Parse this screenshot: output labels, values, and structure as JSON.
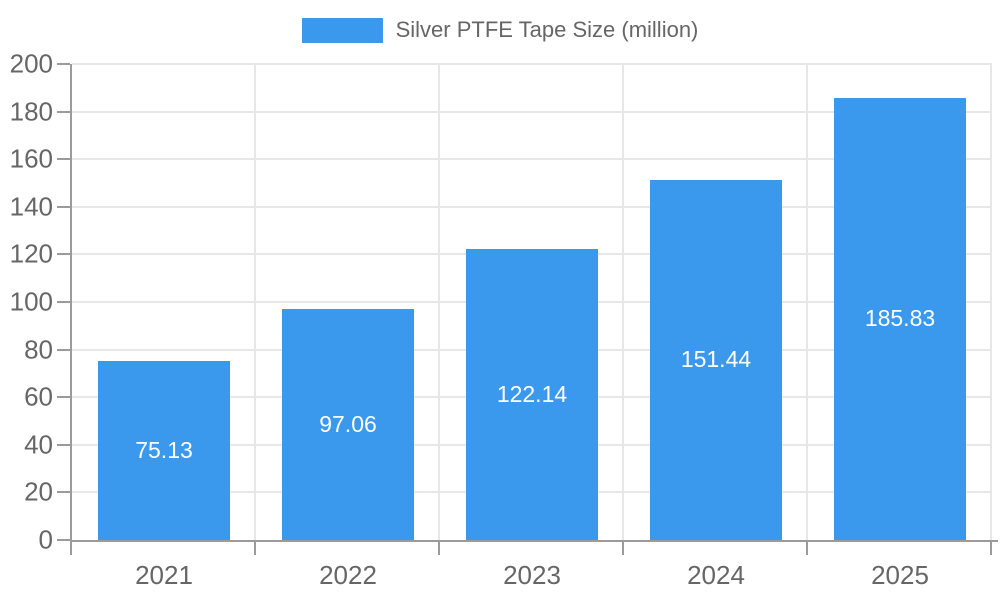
{
  "legend": {
    "label": "Silver PTFE Tape Size (million)"
  },
  "chart_data": {
    "type": "bar",
    "title": "",
    "xlabel": "",
    "ylabel": "",
    "categories": [
      "2021",
      "2022",
      "2023",
      "2024",
      "2025"
    ],
    "values": [
      75.13,
      97.06,
      122.14,
      151.44,
      185.83
    ],
    "series_name": "Silver PTFE Tape Size (million)",
    "ylim": [
      0,
      200
    ],
    "ytick_step": 20,
    "ytick_labels": [
      "0",
      "20",
      "40",
      "60",
      "80",
      "100",
      "120",
      "140",
      "160",
      "180",
      "200"
    ],
    "grid": true,
    "legend_position": "top-center",
    "bar_label_position": "inside-center"
  },
  "colors": {
    "bar": "#3a99ec",
    "bar_label": "#ffffff",
    "axis_line": "#9b9b9b",
    "grid_line": "#e7e7e7",
    "axis_label": "#666666",
    "legend_text": "#666666",
    "background": "#ffffff"
  }
}
